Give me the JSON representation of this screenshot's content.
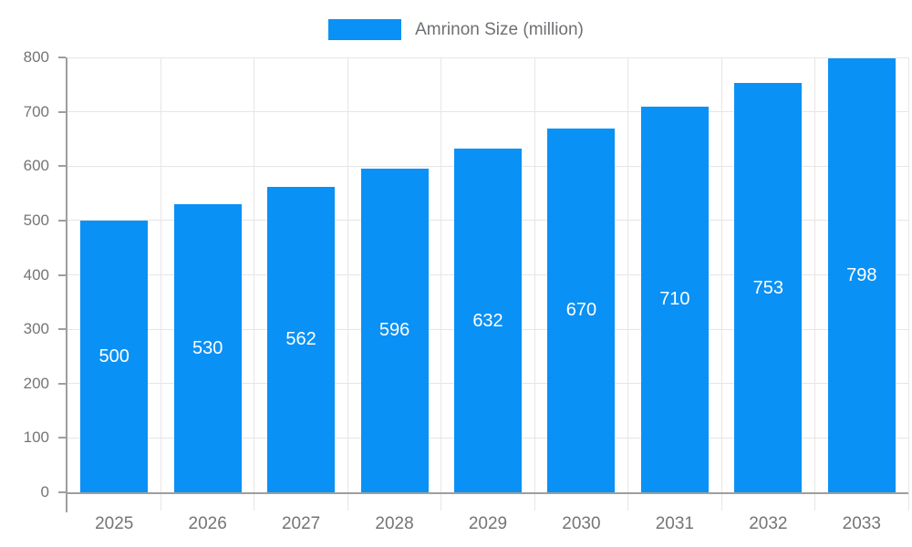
{
  "colors": {
    "bar": "#0A91F5",
    "grid": "#E6E6E6",
    "axis": "#9E9E9E",
    "tick_text": "#757575",
    "legend_text": "#6E7174",
    "bar_label": "#FFFFFF",
    "background": "#FFFFFF"
  },
  "chart_data": {
    "type": "bar",
    "title": "",
    "legend": "Amrinon Size (million)",
    "legend_position": "top-center",
    "categories": [
      "2025",
      "2026",
      "2027",
      "2028",
      "2029",
      "2030",
      "2031",
      "2032",
      "2033"
    ],
    "values": [
      500,
      530,
      562,
      596,
      632,
      670,
      710,
      753,
      798
    ],
    "bar_labels_visible": true,
    "xlabel": "",
    "ylabel": "",
    "ylim": [
      0,
      800
    ],
    "ytick_step": 100,
    "ytick_labels": [
      "0",
      "100",
      "200",
      "300",
      "400",
      "500",
      "600",
      "700",
      "800"
    ],
    "grid": true
  }
}
